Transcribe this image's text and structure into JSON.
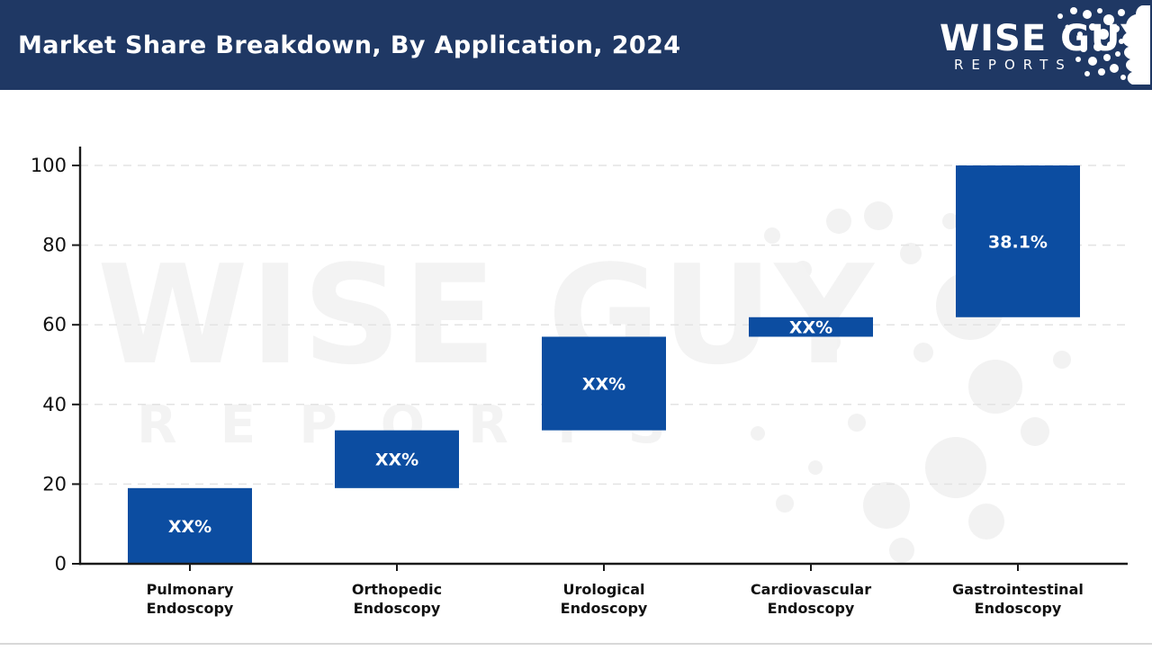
{
  "header": {
    "title": "Market Share Breakdown, By Application, 2024",
    "bg_color": "#1f3864",
    "logo": {
      "line1": "WISE GUY",
      "line2": "REPORTS"
    }
  },
  "watermark": {
    "line1": "WISE GUY",
    "line2": "REPORTS"
  },
  "chart_data": {
    "type": "bar",
    "subtype": "waterfall",
    "title": "Market Share Breakdown, By Application, 2024",
    "categories": [
      "Pulmonary Endoscopy",
      "Orthopedic Endoscopy",
      "Urological Endoscopy",
      "Cardiovascular Endoscopy",
      "Gastrointestinal Endoscopy"
    ],
    "series": [
      {
        "name": "Market Share",
        "segments": [
          {
            "start": 0,
            "end": 19,
            "value": 19,
            "label": "XX%"
          },
          {
            "start": 19,
            "end": 33.5,
            "value": 14.5,
            "label": "XX%"
          },
          {
            "start": 33.5,
            "end": 57,
            "value": 23.5,
            "label": "XX%"
          },
          {
            "start": 57,
            "end": 61.9,
            "value": 4.9,
            "label": "XX%"
          },
          {
            "start": 61.9,
            "end": 100,
            "value": 38.1,
            "label": "38.1%"
          }
        ]
      }
    ],
    "xlabel": "",
    "ylabel": "",
    "ylim": [
      0,
      100
    ],
    "yticks": [
      0,
      20,
      40,
      60,
      80,
      100
    ],
    "grid": "dashed-horizontal",
    "legend": "none",
    "bar_color": "#0c4da1",
    "label_color": "#ffffff",
    "axis_color": "#1a1a1a",
    "grid_color": "#e3e3e3",
    "tick_label_color": "#111111"
  }
}
